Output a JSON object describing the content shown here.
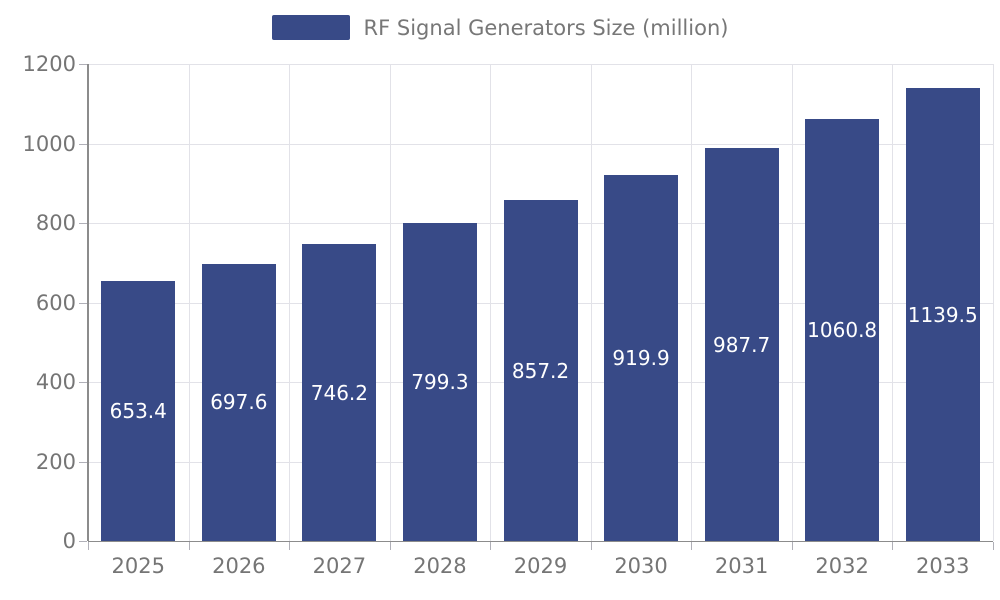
{
  "chart_data": {
    "type": "bar",
    "title": "RF Signal Generators Size (million)",
    "legend": [
      "RF Signal Generators Size (million)"
    ],
    "legend_position": "top",
    "categories": [
      "2025",
      "2026",
      "2027",
      "2028",
      "2029",
      "2030",
      "2031",
      "2032",
      "2033"
    ],
    "series": [
      {
        "name": "RF Signal Generators Size (million)",
        "values": [
          653.4,
          697.6,
          746.2,
          799.3,
          857.2,
          919.9,
          987.7,
          1060.8,
          1139.5
        ]
      }
    ],
    "data_labels_visible": true,
    "data_label_position": "inside-center",
    "xlabel": "",
    "ylabel": "",
    "ylim": [
      0,
      1200
    ],
    "yticks": [
      0,
      200,
      400,
      600,
      800,
      1000,
      1200
    ],
    "grid": true,
    "colors": {
      "bar": "#384A87",
      "bar_value_text": "#ffffff",
      "axis_text": "#757575",
      "legend_text": "#777777",
      "gridline": "#e2e2e8",
      "axis_line": "#8c8c8c",
      "tick": "#b0b0b8",
      "background": "#ffffff"
    }
  }
}
